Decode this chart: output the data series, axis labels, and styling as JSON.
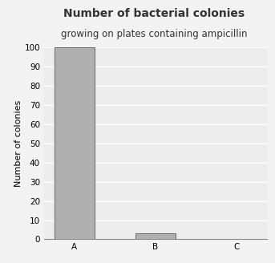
{
  "categories": [
    "A",
    "B",
    "C"
  ],
  "values": [
    100,
    3,
    0
  ],
  "bar_color": "#b0b0b0",
  "bar_edgecolor": "#555555",
  "title": "Number of bacterial colonies",
  "subtitle": "growing on plates containing ampicillin",
  "ylabel": "Number of colonies",
  "ylim": [
    0,
    100
  ],
  "yticks": [
    0,
    10,
    20,
    30,
    40,
    50,
    60,
    70,
    80,
    90,
    100
  ],
  "title_fontsize": 10,
  "subtitle_fontsize": 8.5,
  "ylabel_fontsize": 8,
  "tick_fontsize": 7.5,
  "fig_background": "#f2f2f2",
  "plot_background": "#ececec",
  "grid_color": "#ffffff",
  "bar_width": 0.5
}
